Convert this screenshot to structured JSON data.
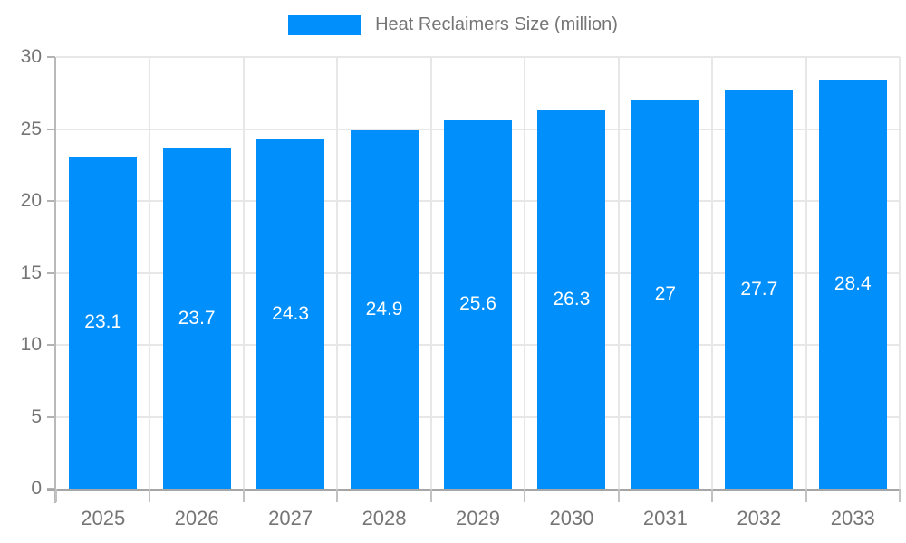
{
  "legend": {
    "label": "Heat Reclaimers Size (million)"
  },
  "chart_data": {
    "type": "bar",
    "title": "Heat Reclaimers Size (million)",
    "categories": [
      "2025",
      "2026",
      "2027",
      "2028",
      "2029",
      "2030",
      "2031",
      "2032",
      "2033"
    ],
    "values": [
      23.1,
      23.7,
      24.3,
      24.9,
      25.6,
      26.3,
      27,
      27.7,
      28.4
    ],
    "series": [
      {
        "name": "Heat Reclaimers Size (million)",
        "values": [
          23.1,
          23.7,
          24.3,
          24.9,
          25.6,
          26.3,
          27,
          27.7,
          28.4
        ]
      }
    ],
    "value_labels": [
      "23.1",
      "23.7",
      "24.3",
      "24.9",
      "25.6",
      "26.3",
      "27",
      "27.7",
      "28.4"
    ],
    "xlabel": "",
    "ylabel": "",
    "ylim": [
      0,
      30
    ],
    "yticks": [
      0,
      5,
      10,
      15,
      20,
      25,
      30
    ],
    "grid": true,
    "legend_position": "top",
    "colors": {
      "bar": "#008FFB",
      "value_label": "#ffffff",
      "axis_text": "#757575",
      "gridline": "#e7e7e7",
      "axis_line": "#a6a6a6",
      "tick": "#b3b3b3"
    }
  }
}
